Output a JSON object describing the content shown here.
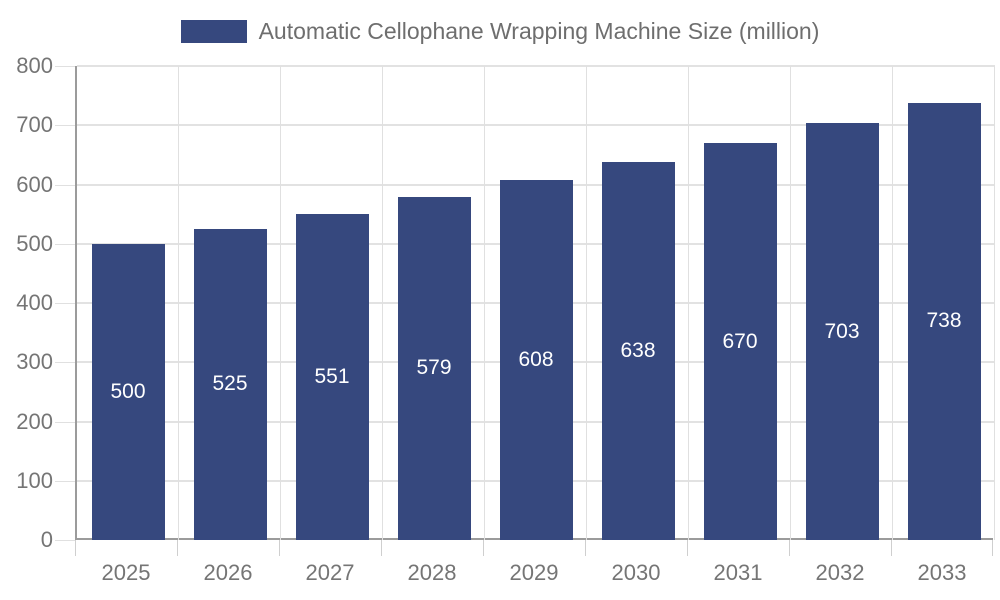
{
  "chart_data": {
    "type": "bar",
    "title": "Automatic Cellophane Wrapping Machine Size (million)",
    "categories": [
      "2025",
      "2026",
      "2027",
      "2028",
      "2029",
      "2030",
      "2031",
      "2032",
      "2033"
    ],
    "values": [
      500,
      525,
      551,
      579,
      608,
      638,
      670,
      703,
      738
    ],
    "xlabel": "",
    "ylabel": "",
    "ylim": [
      0,
      800
    ],
    "ytick_step": 100,
    "yticks": [
      0,
      100,
      200,
      300,
      400,
      500,
      600,
      700,
      800
    ],
    "grid": true,
    "legend_position": "top-center",
    "bar_label_position": "inside-center",
    "colors": {
      "bar": "#36487e",
      "bar_label": "#ffffff",
      "axis_line": "#9b9b9b",
      "gridline": "#e2e2e2",
      "gridline_vertical": "#e0e0e0",
      "tick_mark_y": "#e0e0e0",
      "tick_mark_x": "#cfcfcf",
      "tick_label": "#757575",
      "legend_text": "#6e6e6e",
      "background": "#ffffff"
    }
  }
}
